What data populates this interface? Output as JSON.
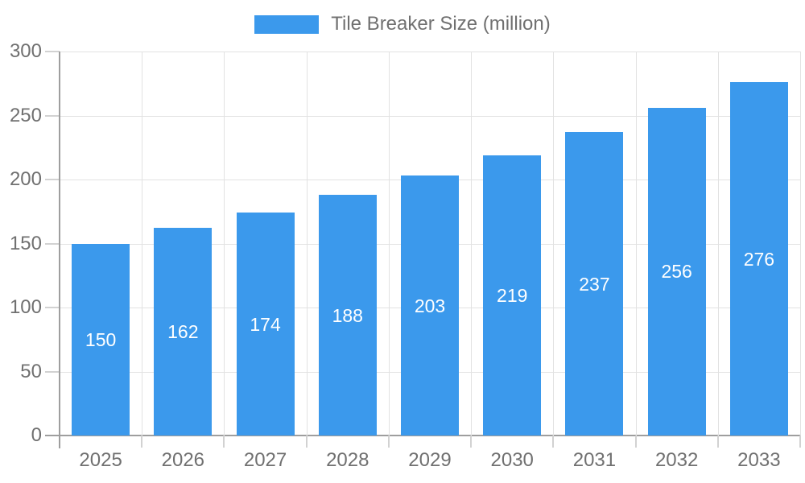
{
  "legend": {
    "label": "Tile Breaker Size (million)"
  },
  "colors": {
    "bar": "#3B99EC",
    "bar_label": "#FFFFFF",
    "axis_line": "#9E9E9E",
    "gridline": "#E2E2E2",
    "tick": "#D2D2D2",
    "text": "#707070",
    "background": "#FFFFFF"
  },
  "chart_data": {
    "type": "bar",
    "title": "Tile Breaker Size (million)",
    "series_name": "Tile Breaker Size (million)",
    "categories": [
      "2025",
      "2026",
      "2027",
      "2028",
      "2029",
      "2030",
      "2031",
      "2032",
      "2033"
    ],
    "values": [
      150,
      162,
      174,
      188,
      203,
      219,
      237,
      256,
      276
    ],
    "value_labels_shown": true,
    "value_label_position": "inside-center",
    "xlabel": "",
    "ylabel": "",
    "ylim": [
      0,
      300
    ],
    "yticks": [
      0,
      50,
      100,
      150,
      200,
      250,
      300
    ],
    "grid": true,
    "legend_position": "top-center"
  }
}
